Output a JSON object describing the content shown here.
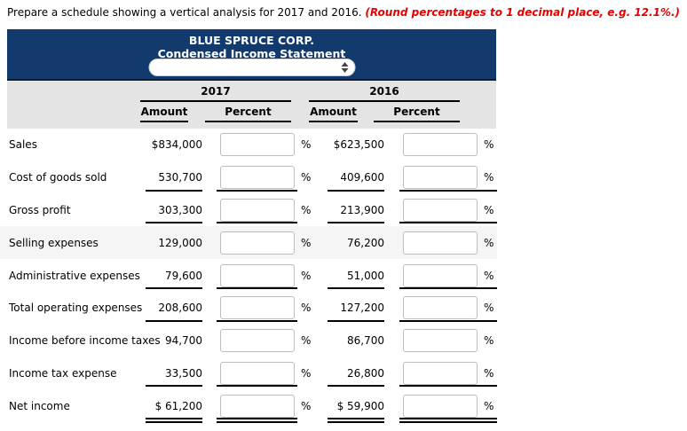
{
  "instruction": {
    "text": "Prepare a schedule showing a vertical analysis for 2017 and 2016. ",
    "note": "(Round percentages to 1 decimal place, e.g. 12.1%.)"
  },
  "statement": {
    "company": "BLUE SPRUCE CORP.",
    "title": "Condensed Income Statement",
    "period_select_value": "",
    "percent_symbol": "%",
    "columns": [
      {
        "year": "2017",
        "amount_label": "Amount",
        "percent_label": "Percent"
      },
      {
        "year": "2016",
        "amount_label": "Amount",
        "percent_label": "Percent"
      }
    ],
    "rows": [
      {
        "label": "Sales",
        "amount_2017": "$834,000",
        "percent_2017": "",
        "amount_2016": "$623,500",
        "percent_2016": ""
      },
      {
        "label": "Cost of goods sold",
        "amount_2017": "530,700",
        "percent_2017": "",
        "amount_2016": "409,600",
        "percent_2016": ""
      },
      {
        "label": "Gross profit",
        "amount_2017": "303,300",
        "percent_2017": "",
        "amount_2016": "213,900",
        "percent_2016": ""
      },
      {
        "label": "Selling expenses",
        "amount_2017": "129,000",
        "percent_2017": "",
        "amount_2016": "76,200",
        "percent_2016": ""
      },
      {
        "label": "Administrative expenses",
        "amount_2017": "79,600",
        "percent_2017": "",
        "amount_2016": "51,000",
        "percent_2016": ""
      },
      {
        "label": "Total operating expenses",
        "amount_2017": "208,600",
        "percent_2017": "",
        "amount_2016": "127,200",
        "percent_2016": ""
      },
      {
        "label": "Income before income taxes",
        "amount_2017": "94,700",
        "percent_2017": "",
        "amount_2016": "86,700",
        "percent_2016": ""
      },
      {
        "label": "Income tax expense",
        "amount_2017": "33,500",
        "percent_2017": "",
        "amount_2016": "26,800",
        "percent_2016": ""
      },
      {
        "label": "Net income",
        "amount_2017": "$ 61,200",
        "percent_2017": "",
        "amount_2016": "$ 59,900",
        "percent_2016": ""
      }
    ]
  },
  "colors": {
    "header_navy": "#123a6d",
    "column_band_gray": "#e4e4e4",
    "highlight_row_gray": "#f5f5f5",
    "note_red": "#e60000",
    "rule_black": "#000000",
    "input_border": "#bdbdbd"
  }
}
